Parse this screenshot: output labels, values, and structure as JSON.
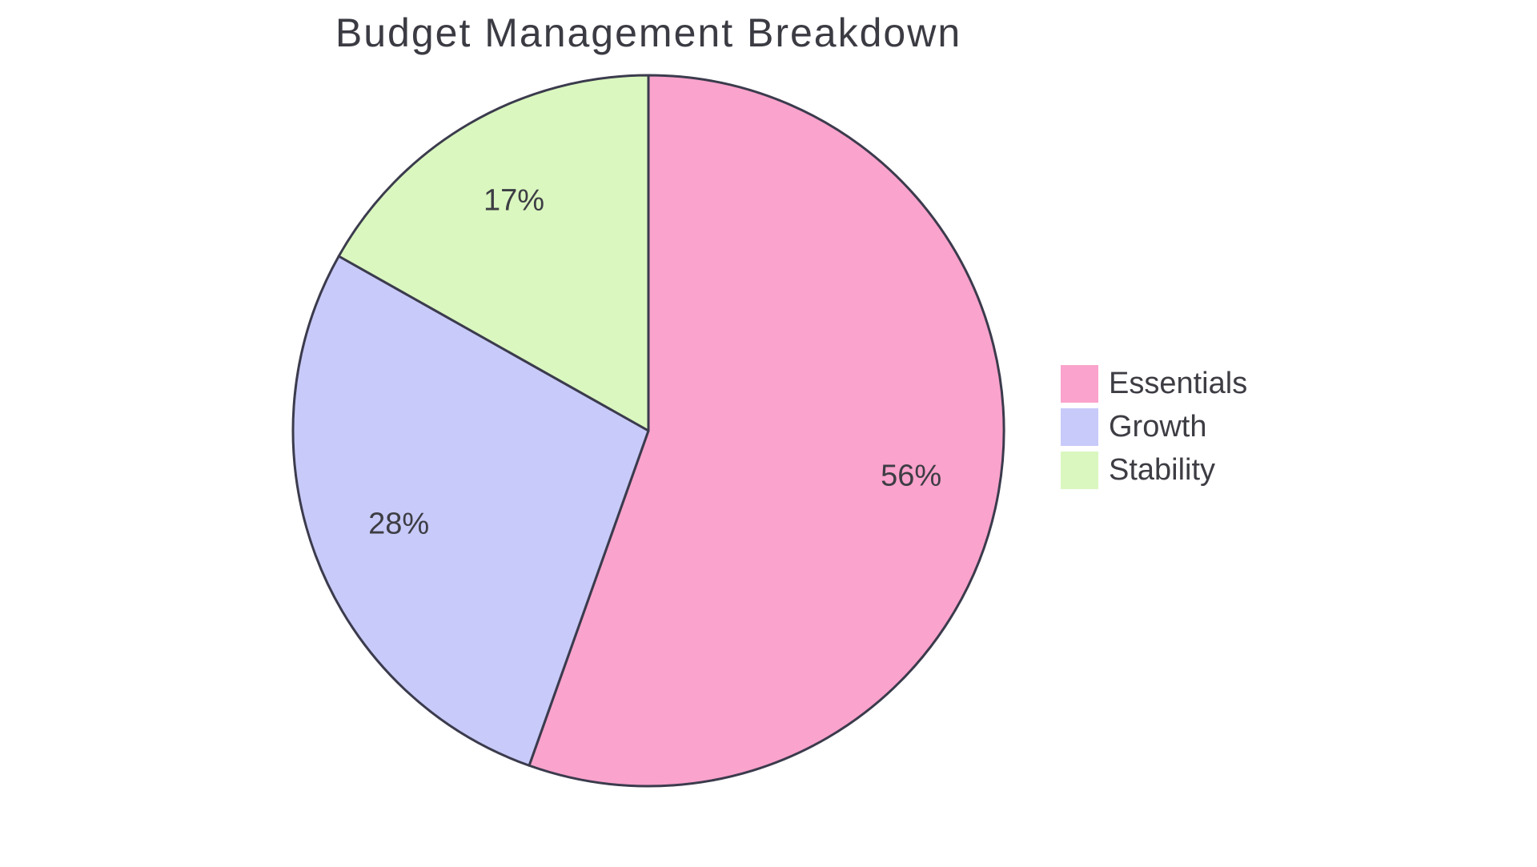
{
  "chart_data": {
    "type": "pie",
    "title": "Budget Management Breakdown",
    "slices": [
      {
        "label": "Essentials",
        "value": 56,
        "pct_label": "56%",
        "color": "#FAA3CC"
      },
      {
        "label": "Growth",
        "value": 28,
        "pct_label": "28%",
        "color": "#C8CAF9"
      },
      {
        "label": "Stability",
        "value": 17,
        "pct_label": "17%",
        "color": "#DAF7BF"
      }
    ],
    "start_angle": "12-oclock",
    "direction": "clockwise",
    "legend_position": "right",
    "slice_labels_inside": true,
    "stroke_color": "#3B3B4D",
    "label_color": "#3D3D44",
    "title_color": "#3B3B43",
    "background_color": "#FFFFFF"
  }
}
